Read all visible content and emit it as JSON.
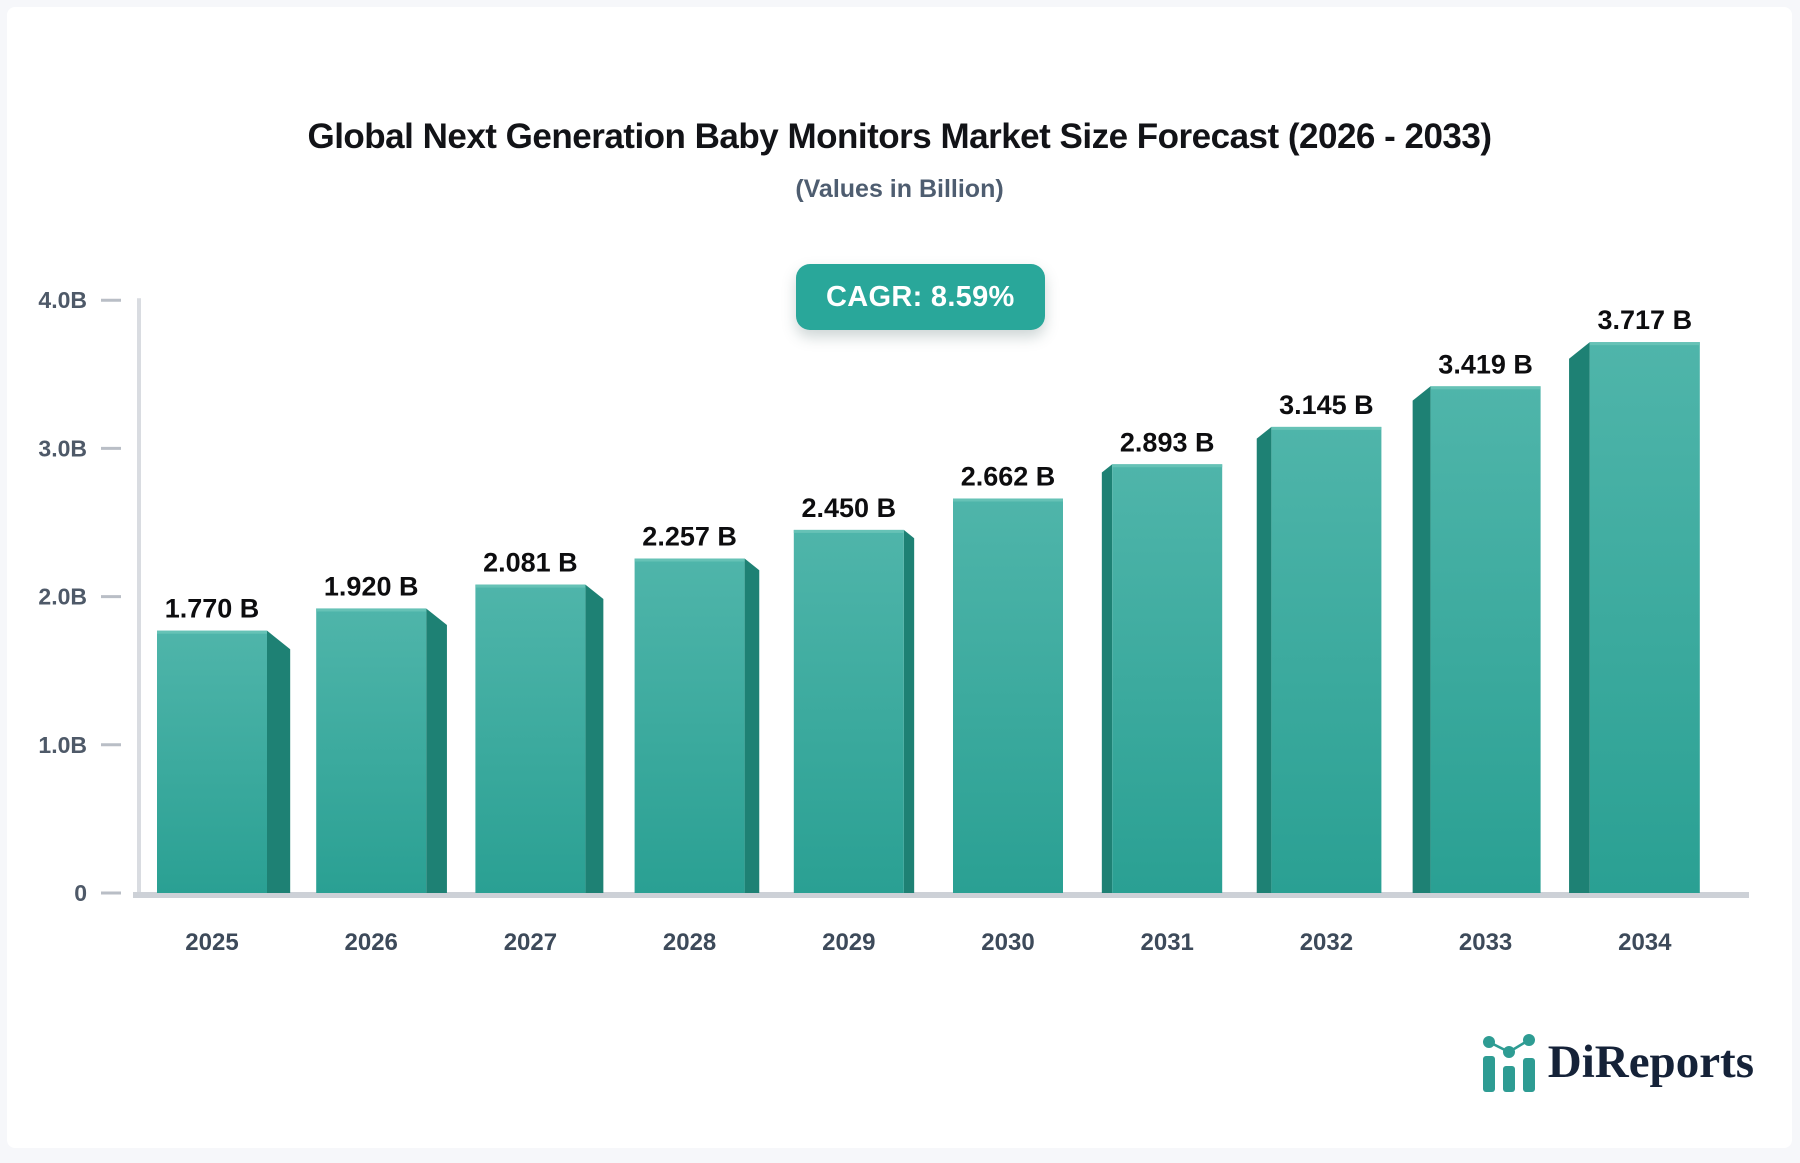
{
  "header": {
    "title": "Global Next Generation Baby Monitors Market Size Forecast (2026 - 2033)",
    "subtitle": "(Values in Billion)"
  },
  "badge": {
    "label": "CAGR: 8.59%",
    "background_color": "#29a79a",
    "text_color": "#ffffff"
  },
  "chart_data": {
    "type": "bar",
    "title": "Global Next Generation Baby Monitors Market Size Forecast (2026 - 2033)",
    "subtitle": "(Values in Billion)",
    "categories": [
      "2025",
      "2026",
      "2027",
      "2028",
      "2029",
      "2030",
      "2031",
      "2032",
      "2033",
      "2034"
    ],
    "values": [
      1.77,
      1.92,
      2.081,
      2.257,
      2.45,
      2.662,
      2.893,
      3.145,
      3.419,
      3.717
    ],
    "value_labels": [
      "1.770 B",
      "1.920 B",
      "2.081 B",
      "2.257 B",
      "2.450 B",
      "2.662 B",
      "2.893 B",
      "3.145 B",
      "3.419 B",
      "3.717 B"
    ],
    "units": "Billion",
    "cagr": "8.59%",
    "xlabel": "",
    "ylabel": "",
    "ylim": [
      0,
      4.0
    ],
    "y_ticks": [
      {
        "value": 0,
        "label": "0"
      },
      {
        "value": 1.0,
        "label": "1.0B"
      },
      {
        "value": 2.0,
        "label": "2.0B"
      },
      {
        "value": 3.0,
        "label": "3.0B"
      },
      {
        "value": 4.0,
        "label": "4.0B"
      }
    ],
    "grid": false,
    "legend": false,
    "style": "3d-extruded-bars-center-perspective",
    "colors": {
      "bar_front_top": "#4fb5aa",
      "bar_front_bottom": "#2aa093",
      "bar_top_highlight": "#66c2b6",
      "bar_side": "#1e8174",
      "axis_line": "#d9dce1",
      "baseline": "#cdd1d7",
      "tick_dash": "#b9bec6",
      "value_label": "#0d0d0f",
      "x_tick_label": "#3d4a5a",
      "y_tick_label": "#4e5968"
    }
  },
  "logo": {
    "text": "DiReports",
    "icon": "mini-bar-line-chart-icon",
    "icon_color": "#2e9c93",
    "text_color": "#152238"
  }
}
